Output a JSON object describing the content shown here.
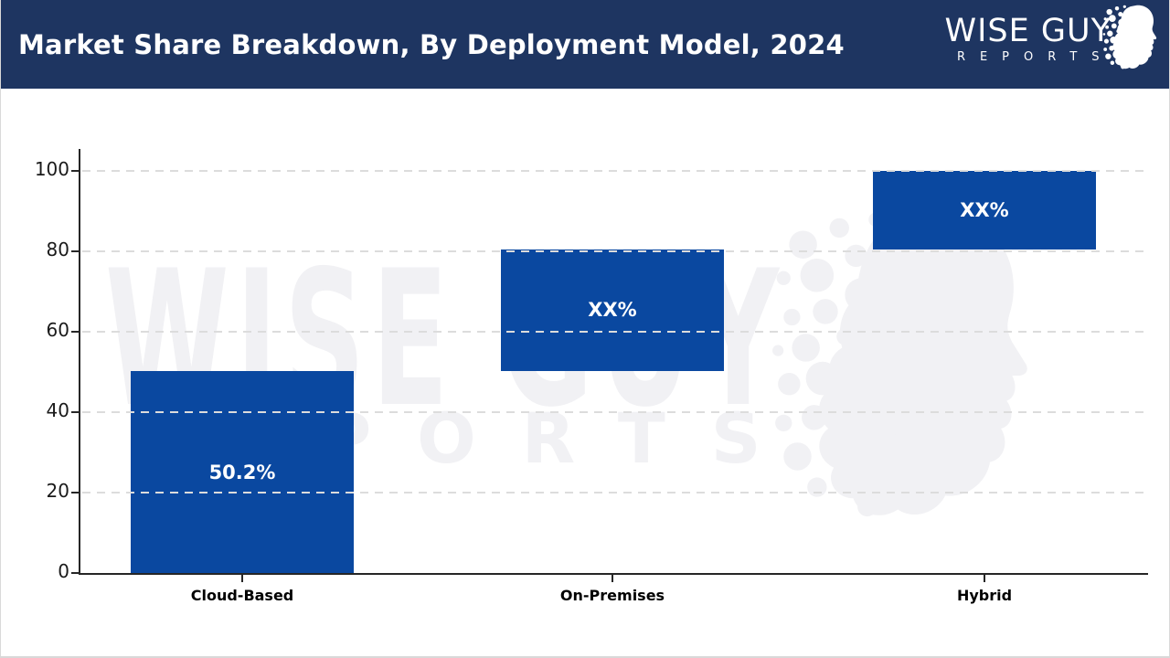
{
  "header": {
    "title": "Market Share Breakdown, By Deployment Model, 2024",
    "logo": {
      "wordmark": "WISE GUY",
      "subtext": "REPORTS"
    }
  },
  "watermark": {
    "wordmark": "WISE GUY",
    "subtext": "REPORTS"
  },
  "colors": {
    "header_bg": "#1e3561",
    "bar": "#0a48a0",
    "bar_label": "#ffffff",
    "grid": "#dcdcdc",
    "axis": "#262626",
    "tick_label": "#1a1a1a",
    "watermark": "#f1f1f4"
  },
  "chart_data": {
    "type": "bar",
    "subtype": "waterfall",
    "title": "Market Share Breakdown, By Deployment Model, 2024",
    "categories": [
      "Cloud-Based",
      "On-Premises",
      "Hybrid"
    ],
    "segments": [
      {
        "category": "Cloud-Based",
        "start": 0,
        "end": 50.2,
        "label": "50.2%",
        "value_estimate": 50.2
      },
      {
        "category": "On-Premises",
        "start": 50.2,
        "end": 80.5,
        "label": "XX%",
        "value_estimate": 30.3
      },
      {
        "category": "Hybrid",
        "start": 80.5,
        "end": 100,
        "label": "XX%",
        "value_estimate": 19.5
      }
    ],
    "xlabel": "",
    "ylabel": "",
    "ylim": [
      0,
      105
    ],
    "yticks": [
      0,
      20,
      40,
      60,
      80,
      100
    ],
    "grid": "horizontal-dashed",
    "legend": "none"
  }
}
